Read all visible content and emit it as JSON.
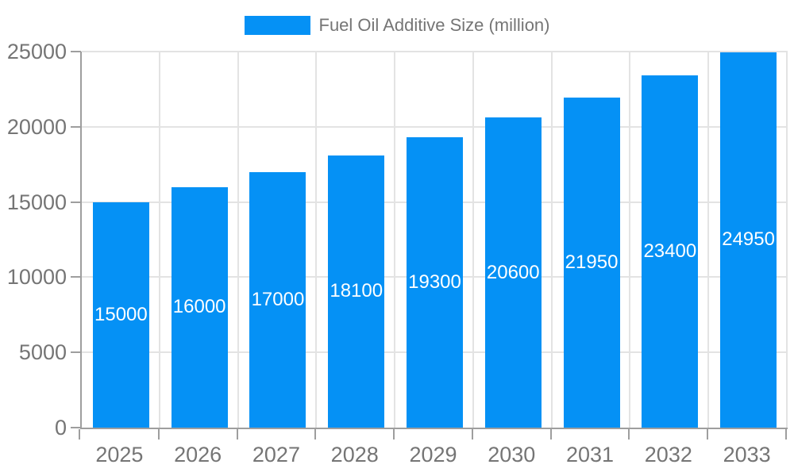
{
  "legend": {
    "position": "top-center",
    "label": "Fuel Oil Additive Size (million)"
  },
  "chart_data": {
    "type": "bar",
    "title": "Fuel Oil Additive Size (million)",
    "categories": [
      "2025",
      "2026",
      "2027",
      "2028",
      "2029",
      "2030",
      "2031",
      "2032",
      "2033"
    ],
    "values": [
      15000,
      16000,
      17000,
      18100,
      19300,
      20600,
      21950,
      23400,
      24950
    ],
    "xlabel": "",
    "ylabel": "",
    "ylim": [
      0,
      25000
    ],
    "yticks": [
      0,
      5000,
      10000,
      15000,
      20000,
      25000
    ],
    "grid": "both",
    "legend_position": "top",
    "value_labels": "centered-inside-bars",
    "colors": {
      "bar": "#0591f5",
      "value_label_text": "#ffffff",
      "axis_line": "#9e9e9e",
      "grid_line": "#e3e3e3",
      "tick_text": "#757575",
      "background": "#ffffff"
    }
  }
}
